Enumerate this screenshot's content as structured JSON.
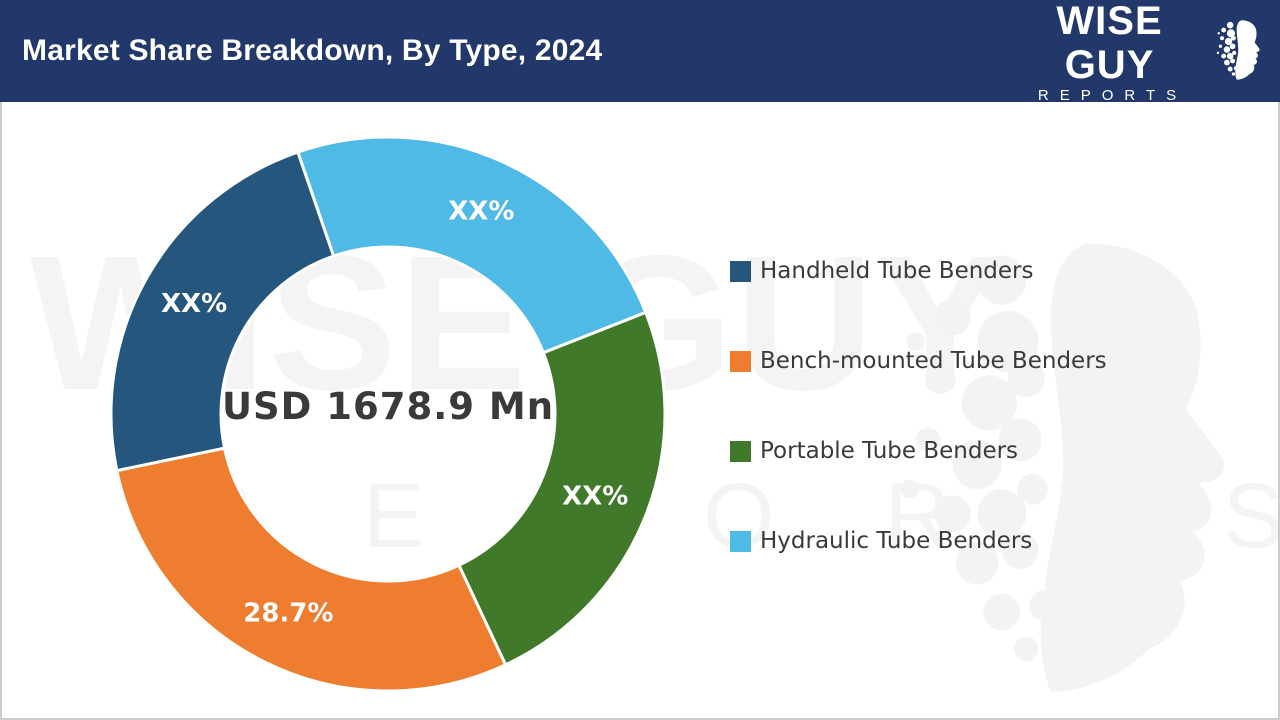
{
  "header": {
    "title": "Market Share Breakdown, By Type, 2024",
    "background_color": "#22386A",
    "logo": {
      "line1": "WISE GUY",
      "line2": "REPORTS"
    }
  },
  "watermark": {
    "line1": "WISE GUY",
    "line2": "REPORTS"
  },
  "chart_data": {
    "type": "pie",
    "subtype": "donut",
    "title": "Market Share Breakdown, By Type, 2024",
    "center_label": "USD 1678.9 Mn",
    "start_angle_deg": -19,
    "legend_position": "right",
    "segments": [
      {
        "label": "Hydraulic Tube Benders",
        "display_value": "XX%",
        "value_pct_est": 24.3,
        "color": "#4FBAE5"
      },
      {
        "label": "Portable Tube Benders",
        "display_value": "XX%",
        "value_pct_est": 24.0,
        "color": "#41792A"
      },
      {
        "label": "Bench-mounted Tube Benders",
        "display_value": "28.7%",
        "value_pct_est": 28.7,
        "color": "#EE7D30"
      },
      {
        "label": "Handheld Tube Benders",
        "display_value": "XX%",
        "value_pct_est": 23.0,
        "color": "#25567D"
      }
    ]
  },
  "legend": {
    "items": [
      {
        "label": "Handheld Tube Benders",
        "color": "#25567D"
      },
      {
        "label": "Bench-mounted Tube Benders",
        "color": "#EE7D30"
      },
      {
        "label": "Portable Tube Benders",
        "color": "#41792A"
      },
      {
        "label": "Hydraulic Tube Benders",
        "color": "#4FBAE5"
      }
    ]
  }
}
